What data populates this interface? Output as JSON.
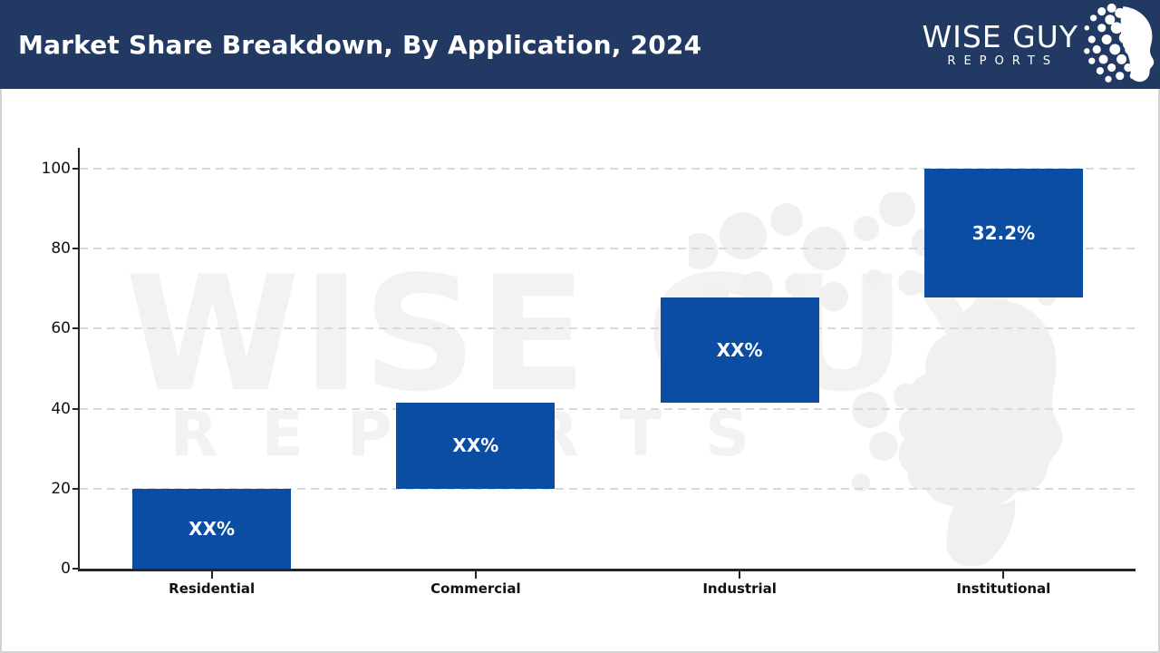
{
  "header": {
    "title": "Market Share Breakdown, By Application, 2024",
    "logo": {
      "name": "Wise Guy Reports",
      "line1": "WISE GUY",
      "line2": "REPORTS"
    }
  },
  "watermark": {
    "line1": "WISE GUY",
    "line2": "REPORTS"
  },
  "chart_data": {
    "type": "bar",
    "subtype": "floating-waterfall",
    "title": "Market Share Breakdown, By Application, 2024",
    "categories": [
      "Residential",
      "Commercial",
      "Industrial",
      "Institutional"
    ],
    "series": [
      {
        "name": "Market share (%)",
        "base": [
          0,
          20,
          41.6,
          67.8
        ],
        "values": [
          20,
          21.6,
          26.2,
          32.2
        ]
      }
    ],
    "bar_labels": [
      "XX%",
      "XX%",
      "XX%",
      "32.2%"
    ],
    "xlabel": "",
    "ylabel": "",
    "ylim": [
      0,
      105
    ],
    "yticks": [
      0,
      20,
      40,
      60,
      80,
      100
    ],
    "grid": "horizontal dashed",
    "legend": "none",
    "bar_color": "#0b4da2"
  },
  "colors": {
    "header_bg": "#223a63",
    "bar": "#0b4da2",
    "bar_label_text": "#ffffff",
    "axis": "#262626",
    "tick_label": "#111111",
    "gridline": "#d9d9d9",
    "background": "#ffffff",
    "watermark": "#f2f2f2",
    "page_border": "#d2d2d2"
  }
}
